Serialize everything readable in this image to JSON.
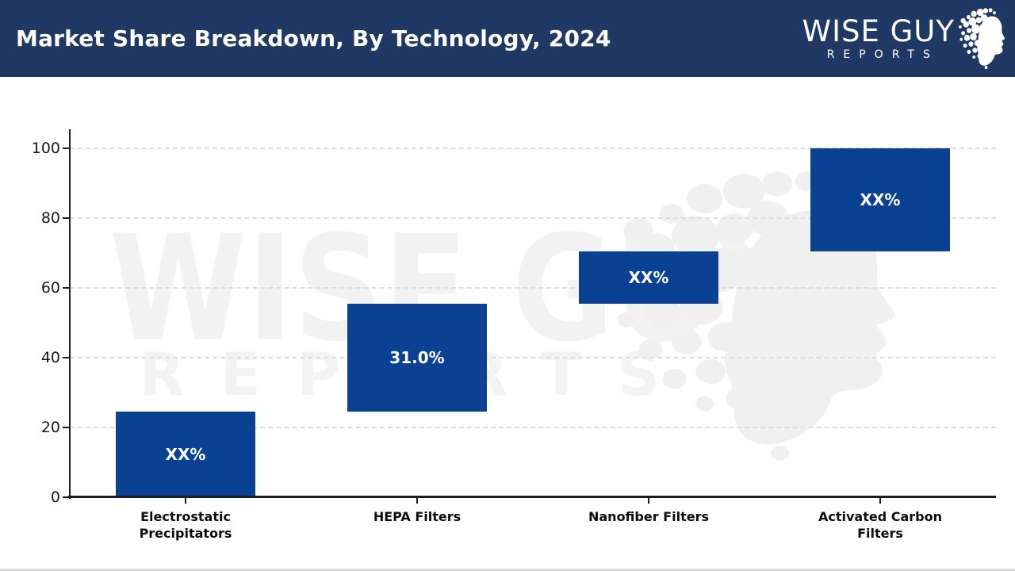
{
  "header": {
    "title": "Market Share Breakdown, By Technology, 2024",
    "logo": {
      "wordmark": "WISE GUY",
      "subtext": "REPORTS",
      "face_icon": "dot-face-profile-icon"
    }
  },
  "watermark": {
    "wordmark": "WISE GUY",
    "subtext": "REPORTS",
    "face_icon": "dot-face-profile-icon"
  },
  "chart_data": {
    "type": "bar",
    "variant": "waterfall-floating-bars",
    "title": "Market Share Breakdown, By Technology, 2024",
    "categories": [
      "Electrostatic Precipitators",
      "HEPA Filters",
      "Nanofiber Filters",
      "Activated Carbon Filters"
    ],
    "segments": [
      {
        "category": "Electrostatic Precipitators",
        "start": 0,
        "end": 24.5,
        "height": 24.5,
        "label": "XX%"
      },
      {
        "category": "HEPA Filters",
        "start": 24.5,
        "end": 55.5,
        "height": 31.0,
        "label": "31.0%"
      },
      {
        "category": "Nanofiber Filters",
        "start": 55.5,
        "end": 70.5,
        "height": 15.0,
        "label": "XX%"
      },
      {
        "category": "Activated Carbon Filters",
        "start": 70.5,
        "end": 100,
        "height": 29.5,
        "label": "XX%"
      }
    ],
    "xlabel": "",
    "ylabel": "",
    "ylim": [
      0,
      100
    ],
    "y_ticks": [
      0,
      20,
      40,
      60,
      80,
      100
    ],
    "grid": "horizontal-dashed",
    "legend": "none",
    "colors": {
      "bar": "#0b4193",
      "bar_label": "#ffffff",
      "header_background": "#1f3964",
      "axis": "#1c1c1c",
      "gridline": "#dedede",
      "watermark": "#f2f2f2"
    }
  }
}
